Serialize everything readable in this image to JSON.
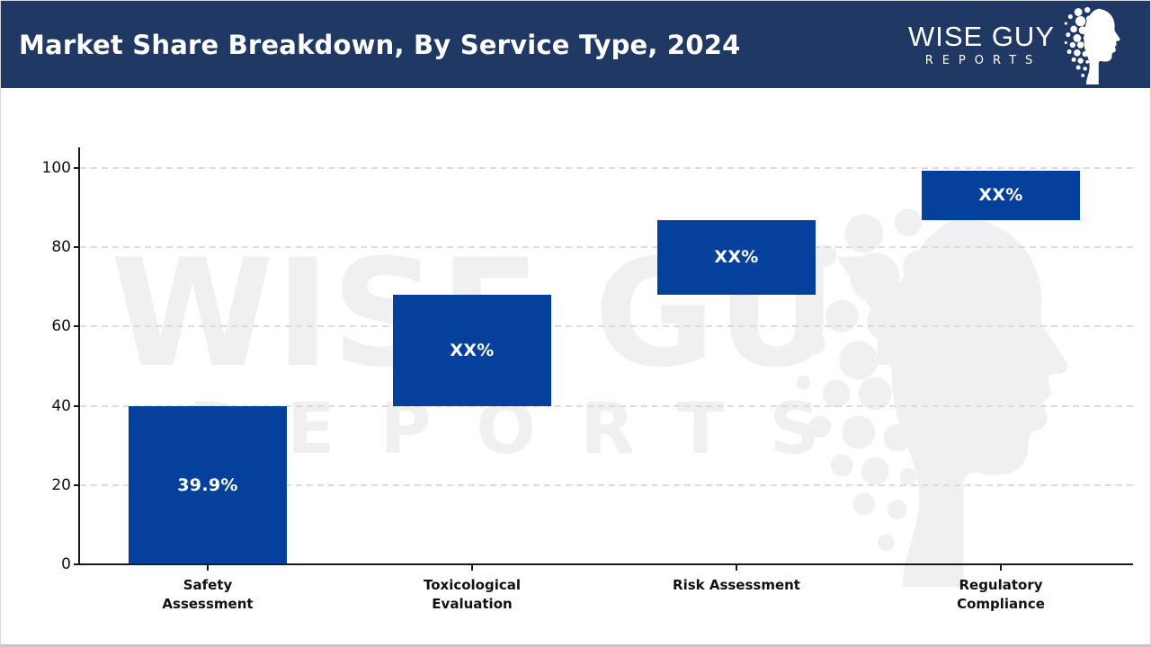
{
  "header": {
    "title": "Market Share Breakdown, By Service Type, 2024",
    "logo": {
      "name": "WISE GUY",
      "tagline": "REPORTS"
    }
  },
  "watermark": {
    "brand": "WISE GUY",
    "tagline": "REPORTS"
  },
  "colors": {
    "header_bg": "#203864",
    "bar_blue": "#05419c",
    "gridline": "#dcdcdc",
    "axis": "#1a1a1a",
    "watermark": "#f0f0f3",
    "bar_label_text": "#ffffff"
  },
  "chart_data": {
    "type": "bar",
    "subtype": "waterfall",
    "title": "Market Share Breakdown, By Service Type, 2024",
    "xlabel": "",
    "ylabel": "",
    "categories": [
      "Safety Assessment",
      "Toxicological Evaluation",
      "Risk Assessment",
      "Regulatory Compliance"
    ],
    "segments": [
      {
        "category": "Safety Assessment",
        "start": 0,
        "end": 39.9,
        "label": "39.9%"
      },
      {
        "category": "Toxicological Evaluation",
        "start": 39.9,
        "end": 68.0,
        "label": "XX%"
      },
      {
        "category": "Risk Assessment",
        "start": 68.0,
        "end": 86.9,
        "label": "XX%"
      },
      {
        "category": "Regulatory Compliance",
        "start": 86.9,
        "end": 99.4,
        "label": "XX%"
      }
    ],
    "yticks": [
      0,
      20,
      40,
      60,
      80,
      100
    ],
    "ylim": [
      0,
      105
    ],
    "grid": "horizontal dashed",
    "legend": "none"
  }
}
